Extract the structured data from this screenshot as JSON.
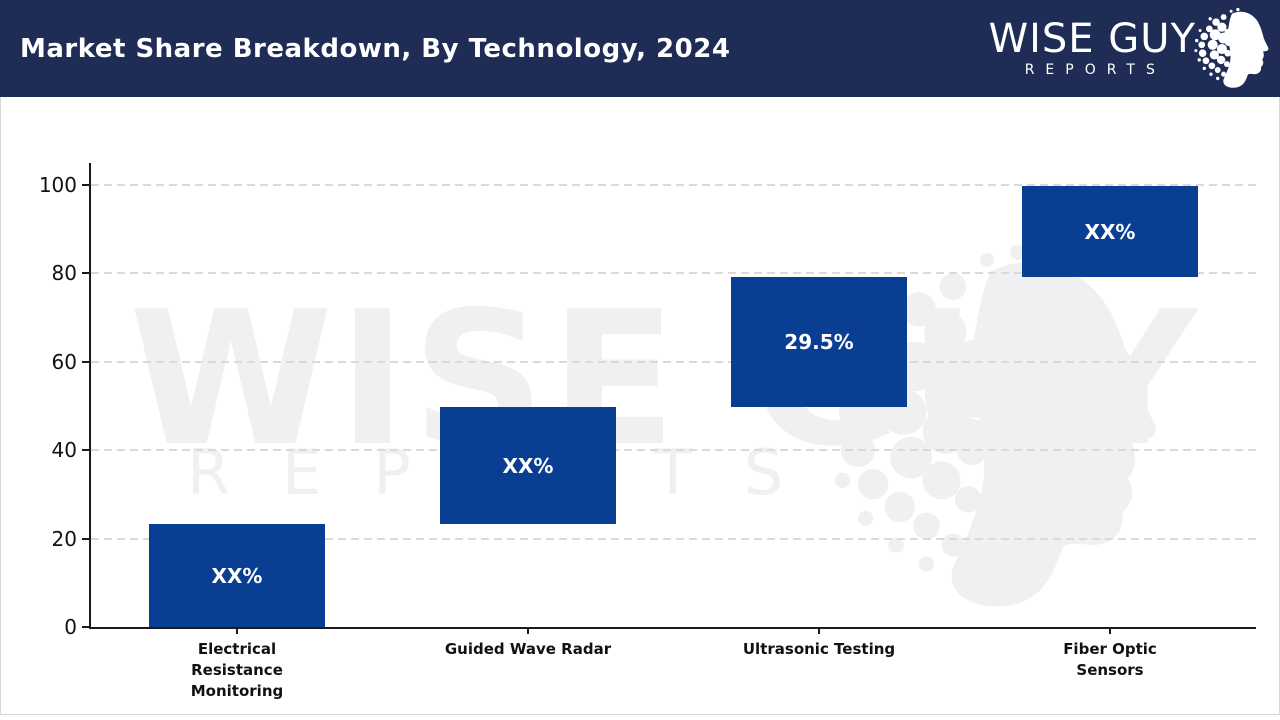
{
  "header": {
    "title": "Market Share Breakdown, By Technology, 2024",
    "logo": {
      "wordmark": "WISE GUY",
      "subtext": "REPORTS"
    },
    "colors": {
      "background": "#1e2c56",
      "text": "#ffffff"
    }
  },
  "watermark": {
    "wordmark": "WISE GUY",
    "subtext": "REPORTS"
  },
  "chart_data": {
    "type": "bar",
    "subtype": "floating-segment-waterfall",
    "title": "Market Share Breakdown, By Technology, 2024",
    "categories": [
      "Electrical\nResistance\nMonitoring",
      "Guided Wave Radar",
      "Ultrasonic Testing",
      "Fiber Optic\nSensors"
    ],
    "segments": [
      {
        "category": "Electrical Resistance Monitoring",
        "start": 0,
        "end": 23.3,
        "label": "XX%"
      },
      {
        "category": "Guided Wave Radar",
        "start": 23.3,
        "end": 49.8,
        "label": "XX%"
      },
      {
        "category": "Ultrasonic Testing",
        "start": 49.8,
        "end": 79.3,
        "label": "29.5%"
      },
      {
        "category": "Fiber Optic Sensors",
        "start": 79.3,
        "end": 100,
        "label": "XX%"
      }
    ],
    "xlabel": "",
    "ylabel": "",
    "ylim": [
      0,
      105
    ],
    "yticks": [
      0,
      20,
      40,
      60,
      80,
      100
    ],
    "grid": "horizontal-dashed",
    "legend": "none",
    "bar_color": "#0a3e93",
    "bar_label_color": "#ffffff",
    "axis_color": "#1a1a1a",
    "grid_color": "#dadada"
  }
}
